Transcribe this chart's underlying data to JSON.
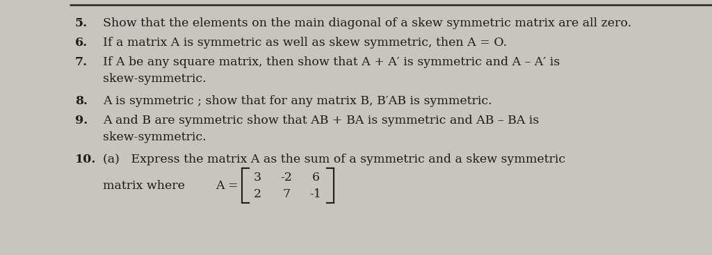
{
  "background_color": "#c8c4be",
  "lines": [
    {
      "num": "5.",
      "text": "Show that the elements on the main diagonal of a skew symmetric matrix are all zero."
    },
    {
      "num": "6.",
      "text": "If a matrix A is symmetric as well as skew symmetric, then A = O."
    },
    {
      "num": "7.",
      "text": "If A be any square matrix, then show that A + A′ is symmetric and A – A′ is",
      "continuation": "skew-symmetric."
    },
    {
      "num": "8.",
      "text": "A is symmetric ; show that for any matrix B, B′AB is symmetric."
    },
    {
      "num": "9.",
      "text": "A and B are symmetric show that AB + BA is symmetric and AB – BA is",
      "continuation": "skew-symmetric."
    },
    {
      "num": "10.",
      "text": "(a)   Express the matrix A as the sum of a symmetric and a skew symmetric"
    }
  ],
  "matrix_label_text": "matrix where",
  "matrix_a_eq": "A =",
  "matrix_rows": [
    [
      "3",
      "-2",
      "6"
    ],
    [
      "2",
      "7",
      "-1"
    ]
  ],
  "font_size": 12.5,
  "text_color": "#1c1c1c",
  "top_line_color": "#333333",
  "page_bg": "#c8c4be"
}
